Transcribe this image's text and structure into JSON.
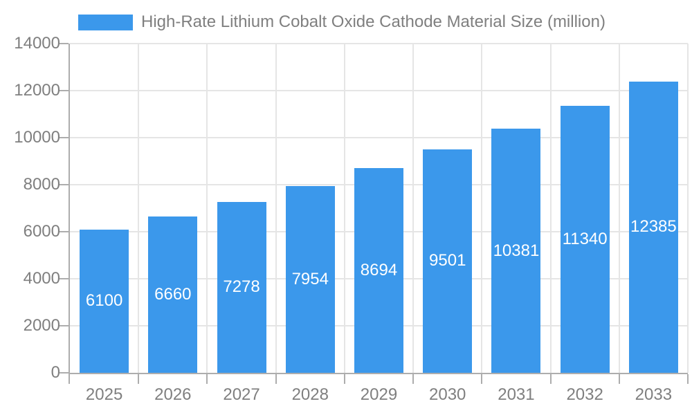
{
  "chart_data": {
    "type": "bar",
    "title": "High-Rate Lithium Cobalt Oxide Cathode Material Size (million)",
    "categories": [
      "2025",
      "2026",
      "2027",
      "2028",
      "2029",
      "2030",
      "2031",
      "2032",
      "2033"
    ],
    "values": [
      6100,
      6660,
      7278,
      7954,
      8694,
      9501,
      10381,
      11340,
      12385
    ],
    "xlabel": "",
    "ylabel": "",
    "ylim": [
      0,
      14000
    ],
    "ytick_step": 2000,
    "yticks": [
      0,
      2000,
      4000,
      6000,
      8000,
      10000,
      12000,
      14000
    ],
    "grid": true,
    "legend_position": "top",
    "colors": {
      "bar": "#3B98EB",
      "value_label": "#FFFFFF",
      "grid": "#E5E5E5",
      "axis": "#ADADAD",
      "text": "#7F7F7F"
    }
  }
}
